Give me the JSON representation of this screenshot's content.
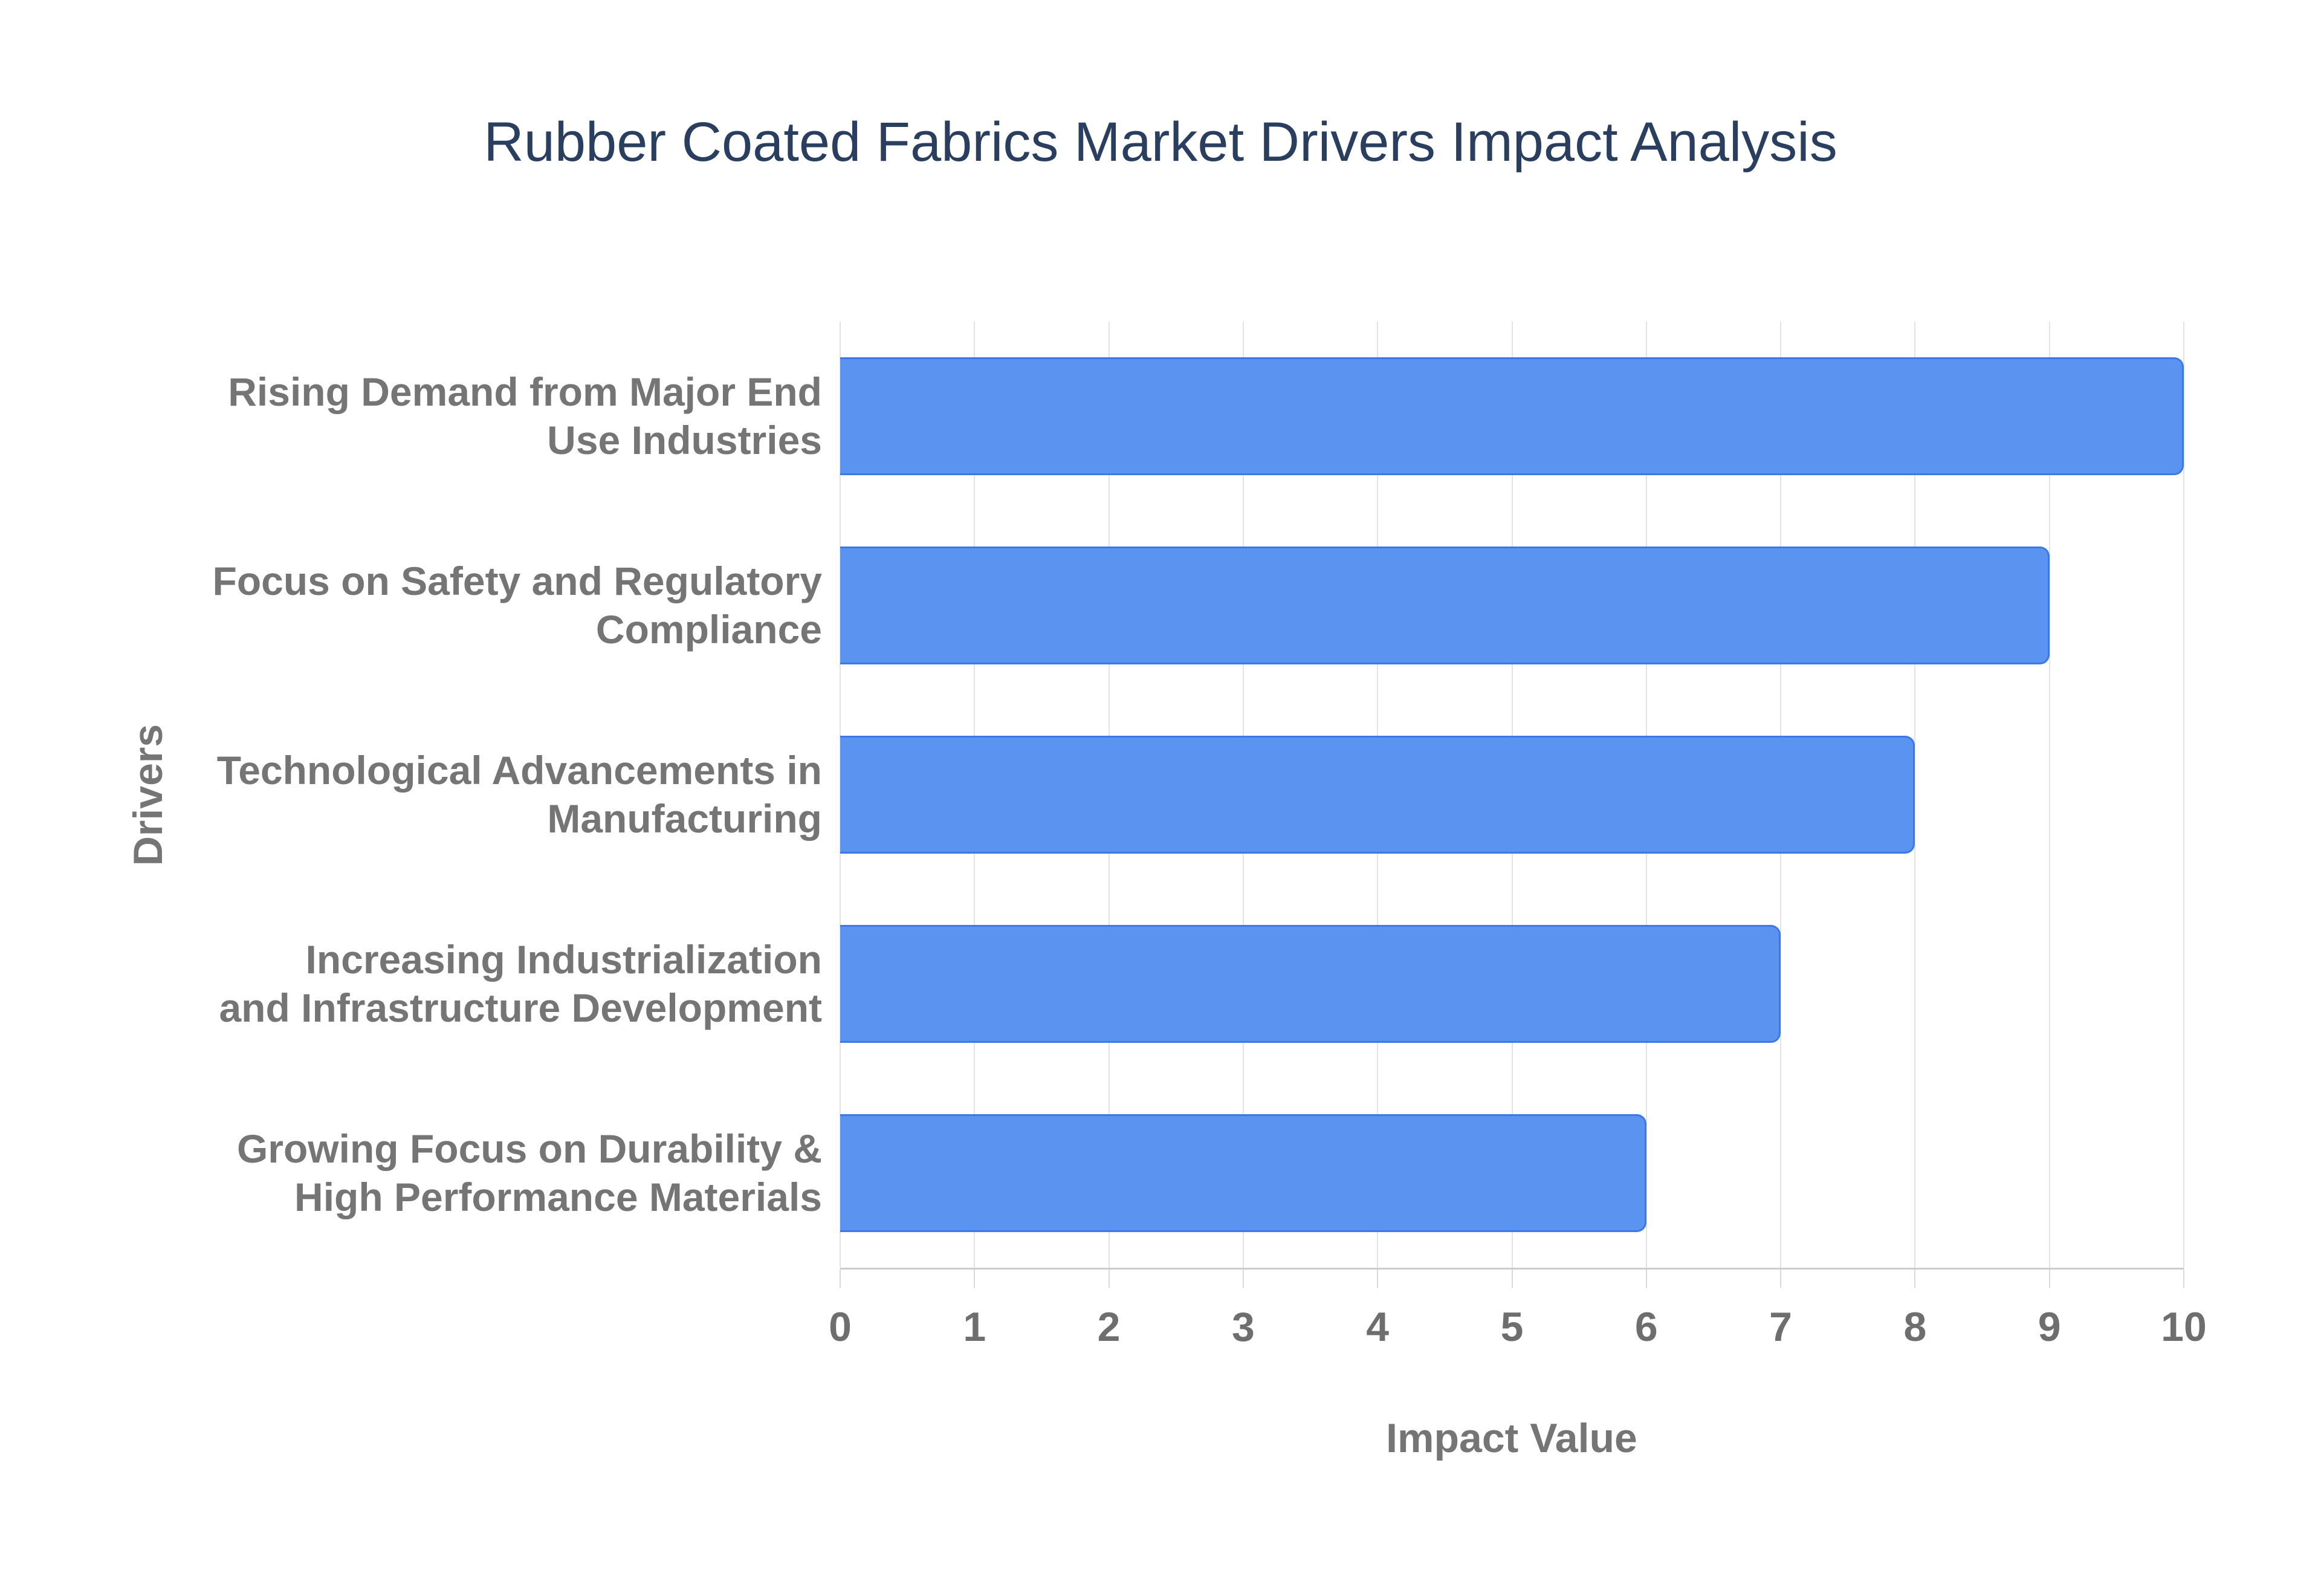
{
  "chart_data": {
    "type": "bar",
    "orientation": "horizontal",
    "title": "Rubber Coated Fabrics Market Drivers Impact Analysis",
    "categories": [
      "Rising Demand from Major End\nUse Industries",
      "Focus on Safety and Regulatory\nCompliance",
      "Technological Advancements in\nManufacturing",
      "Increasing Industrialization\nand Infrastructure Development",
      "Growing Focus on Durability &\nHigh Performance Materials"
    ],
    "values": [
      10,
      9,
      8,
      7,
      6
    ],
    "xlabel": "Impact Value",
    "ylabel": "Drivers",
    "xlim": [
      0,
      10
    ],
    "x_ticks": [
      0,
      1,
      2,
      3,
      4,
      5,
      6,
      7,
      8,
      9,
      10
    ],
    "grid": true,
    "legend": "none",
    "colors": {
      "bar_fill": "#5b93f0",
      "bar_border": "#3c78e8",
      "title_text": "#2a3f5f",
      "axis_text": "#757575",
      "gridline": "#e3e3e3",
      "axis_line": "#cccccc"
    }
  }
}
